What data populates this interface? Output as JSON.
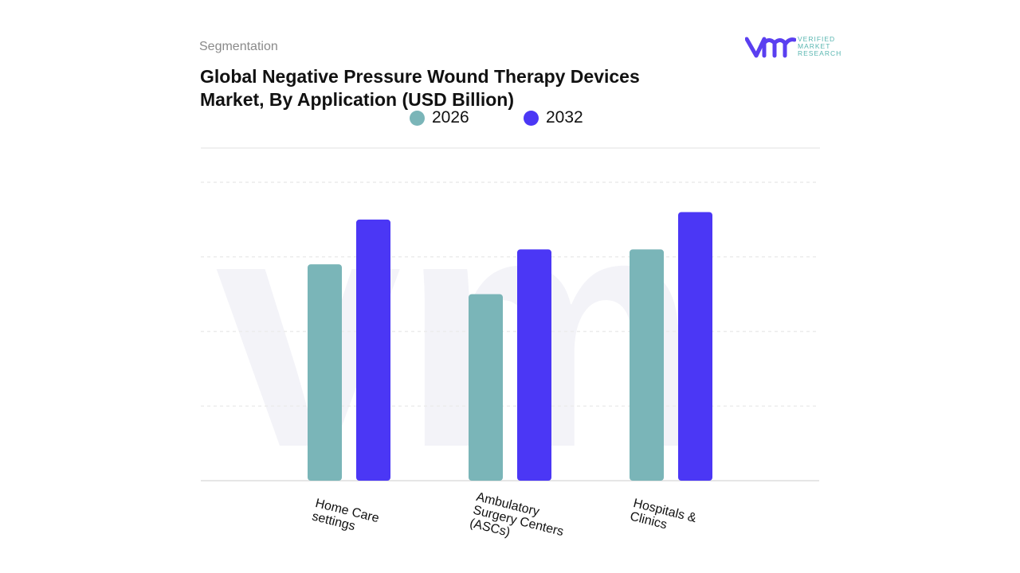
{
  "header": {
    "segment_label": "Segmentation",
    "title": "Global Negative Pressure Wound Therapy Devices Market, By Application (USD Billion)",
    "logo_text": "VERIFIED MARKET RESEARCH"
  },
  "chart_data": {
    "type": "bar",
    "title": "Global Negative Pressure Wound Therapy Devices Market, By Application (USD Billion)",
    "categories": [
      "Home Care settings",
      "Ambulatory Surgery Centers (ASCs)",
      "Hospitals & Clinics"
    ],
    "series": [
      {
        "name": "2026",
        "color": "#7ab5b8",
        "values": [
          2.9,
          2.5,
          3.1
        ]
      },
      {
        "name": "2032",
        "color": "#4b37f5",
        "values": [
          3.5,
          3.1,
          3.6
        ]
      }
    ],
    "ylim": [
      0,
      4
    ],
    "grid": true,
    "legend": "top",
    "xlabel": "",
    "ylabel": ""
  }
}
